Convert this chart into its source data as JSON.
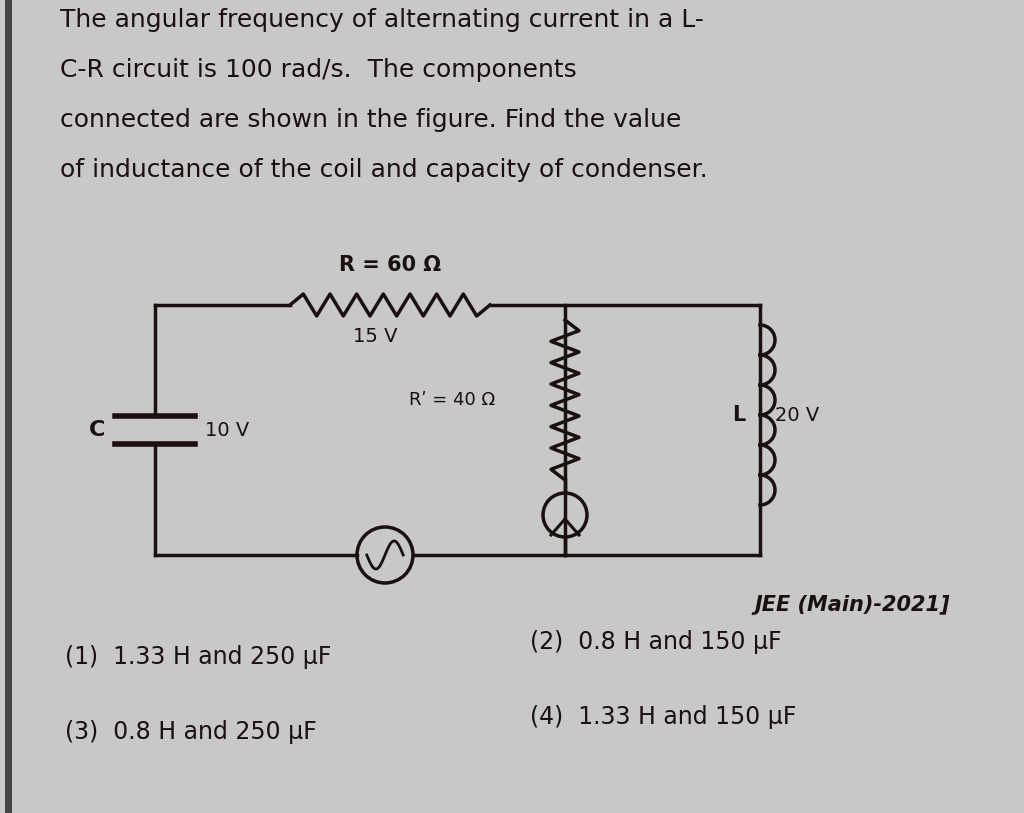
{
  "background_color": "#c8c8c8",
  "text_color": "#1a1010",
  "circuit_color": "#1a1010",
  "title_lines": [
    "The angular frequency of alternating current in a L-",
    "C-R circuit is 100 rad/s.  The components",
    "connected are shown in the figure. Find the value",
    "of inductance of the coil and capacity of condenser."
  ],
  "source_label": "JEE (Main)-2021]",
  "options": [
    "(1)  1.33 H and 250 μF",
    "(2)  0.8 H and 150 μF",
    "(3)  0.8 H and 250 μF",
    "(4)  1.33 H and 150 μF"
  ],
  "R_label": "R = 60 Ω",
  "R_voltage": "15 V",
  "R_prime_label": "Rʹ = 40 Ω",
  "C_label": "C",
  "C_voltage": "10 V",
  "L_label": "L",
  "L_voltage": "20 V"
}
